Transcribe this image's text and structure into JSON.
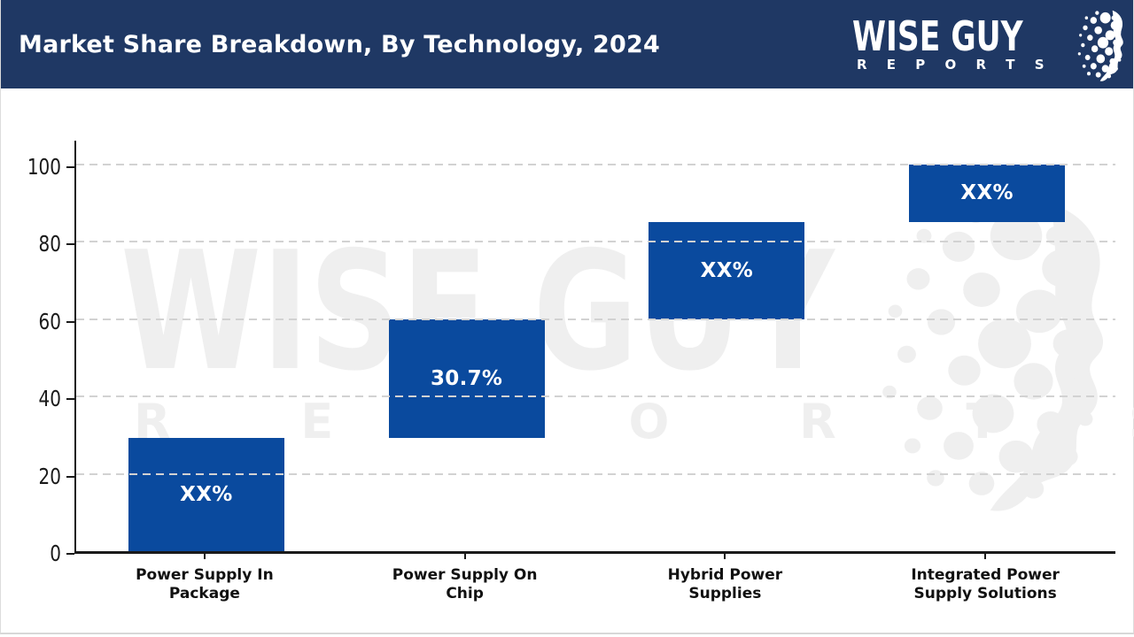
{
  "header": {
    "title": "Market Share Breakdown, By Technology, 2024",
    "logo": {
      "name": "WISE GUY",
      "sub": "R E P O R T S"
    }
  },
  "watermark": {
    "name": "WISE GUY",
    "sub": "R E P O R T S"
  },
  "colors": {
    "header_bg": "#1f3864",
    "bar_fill": "#0a4a9e",
    "gridline": "#d2d2d2",
    "axis": "#1a1a1a",
    "watermark": "#efefef",
    "background": "#ffffff"
  },
  "chart_data": {
    "type": "bar",
    "subtype": "waterfall",
    "title": "Market Share Breakdown, By Technology, 2024",
    "categories": [
      "Power Supply In\nPackage",
      "Power Supply On\nChip",
      "Hybrid Power\nSupplies",
      "Integrated Power\nSupply Solutions"
    ],
    "segments": [
      {
        "category": "Power Supply In Package",
        "start": 0,
        "end": 29.3,
        "label": "XX%"
      },
      {
        "category": "Power Supply On Chip",
        "start": 29.3,
        "end": 60,
        "label": "30.7%"
      },
      {
        "category": "Hybrid Power Supplies",
        "start": 60,
        "end": 85,
        "label": "XX%"
      },
      {
        "category": "Integrated Power Supply Solutions",
        "start": 85,
        "end": 100,
        "label": "XX%"
      }
    ],
    "ylabel": "",
    "xlabel": "",
    "yticks": [
      0,
      20,
      40,
      60,
      80,
      100
    ],
    "ylim": [
      0,
      106.7
    ],
    "grid": "horizontal dashed, drawn over bars",
    "legend": "none"
  }
}
